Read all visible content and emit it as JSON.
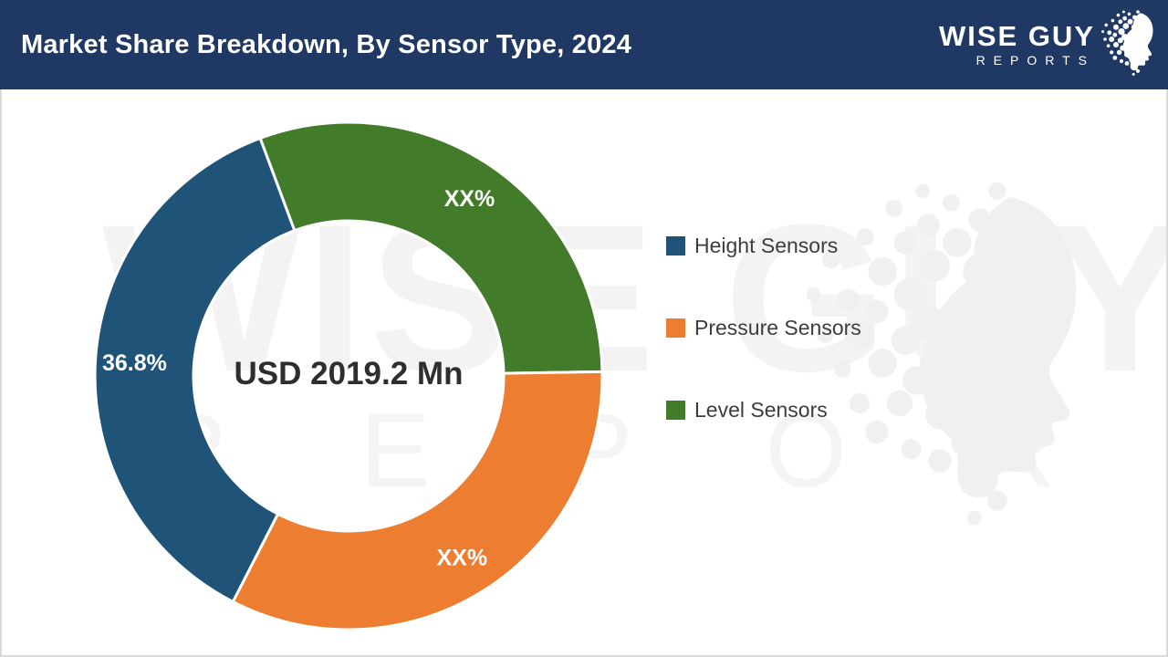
{
  "header": {
    "title": "Market Share Breakdown, By Sensor Type, 2024",
    "background_color": "#203864",
    "logo": {
      "line1": "WISE GUY",
      "line2": "REPORTS"
    }
  },
  "chart_data": {
    "type": "pie",
    "subtype": "donut",
    "title": "Market Share Breakdown, By Sensor Type, 2024",
    "center_label": "USD 2019.2 Mn",
    "start_angle_deg": 110.4,
    "direction": "clockwise",
    "inner_radius_ratio": 0.61,
    "label_color": "#ffffff",
    "segments": [
      {
        "name": "Level Sensors",
        "display_label": "XX%",
        "value_pct": 30.4,
        "color": "#427B2A"
      },
      {
        "name": "Pressure Sensors",
        "display_label": "XX%",
        "value_pct": 32.8,
        "color": "#ED7D31"
      },
      {
        "name": "Height Sensors",
        "display_label": "36.8%",
        "value_pct": 36.8,
        "color": "#1F5377"
      }
    ],
    "legend_position": "right",
    "legend": [
      {
        "label": "Height Sensors",
        "color": "#1F5377"
      },
      {
        "label": "Pressure Sensors",
        "color": "#ED7D31"
      },
      {
        "label": "Level Sensors",
        "color": "#427B2A"
      }
    ]
  },
  "watermark": {
    "line1": "WISE GUY",
    "line2": "REPORTS"
  }
}
